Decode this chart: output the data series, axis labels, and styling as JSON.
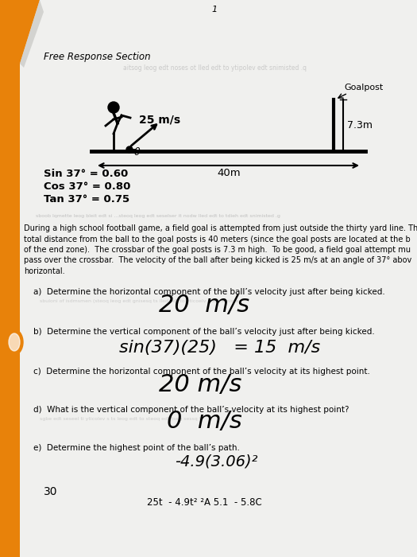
{
  "background_color": "#e8820a",
  "paper_color": "#f0f0ee",
  "title": "Free Response Section",
  "diagram": {
    "velocity": "25 m/s",
    "goalpost_label": "Goalpost",
    "height_label": "7.3m",
    "distance_label": "40m",
    "sin": "Sin 37° = 0.60",
    "cos": "Cos 37° = 0.80",
    "tan": "Tan 37° = 0.75"
  },
  "bleed_through_top": "aitsog leog edt noses ot lled edt to ytipolev edt snimisted .q",
  "bleed_through_a": "sbuloni of isdmsmen (steoq leog edt gnisesq ts lled edt to yticoelv edt snimisted",
  "bleed_through_d": "sgbe edt seseel ti yticolev s ts leog edt to steoq edt tseg sessq ti",
  "problem_text": [
    "During a high school football game, a field goal is attempted from just outside the thirty yard line. The",
    "total distance from the ball to the goal posts is 40 meters (since the goal posts are located at the b",
    "of the end zone).  The crossbar of the goal posts is 7.3 m high.  To be good, a field goal attempt mu",
    "pass over the crossbar.  The velocity of the ball after being kicked is 25 m/s at an angle of 37° abov",
    "horizontal."
  ],
  "questions": [
    {
      "label": "a)",
      "question": "Determine the horizontal component of the ball’s velocity just after being kicked.",
      "answer": "20  m/s",
      "answer_size": 22
    },
    {
      "label": "b)",
      "question": "Determine the vertical component of the ball’s velocity just after being kicked.",
      "answer": "sin(37)(25)   = 15  m/s",
      "answer_size": 16
    },
    {
      "label": "c)",
      "question": "Determine the horizontal component of the ball’s velocity at its highest point.",
      "answer": "20 m/s",
      "answer_size": 22
    },
    {
      "label": "d)",
      "question": "What is the vertical component of the ball’s velocity at its highest point?",
      "answer": "0  m/s",
      "answer_size": 22
    },
    {
      "label": "e)",
      "question": "Determine the highest point of the ball’s path.",
      "answer": "-4.9(3.06)²",
      "answer_size": 14
    }
  ],
  "bottom_left": "30",
  "bottom_right": "25t  - 4.9t² ²A 5.1  - 5.8C"
}
